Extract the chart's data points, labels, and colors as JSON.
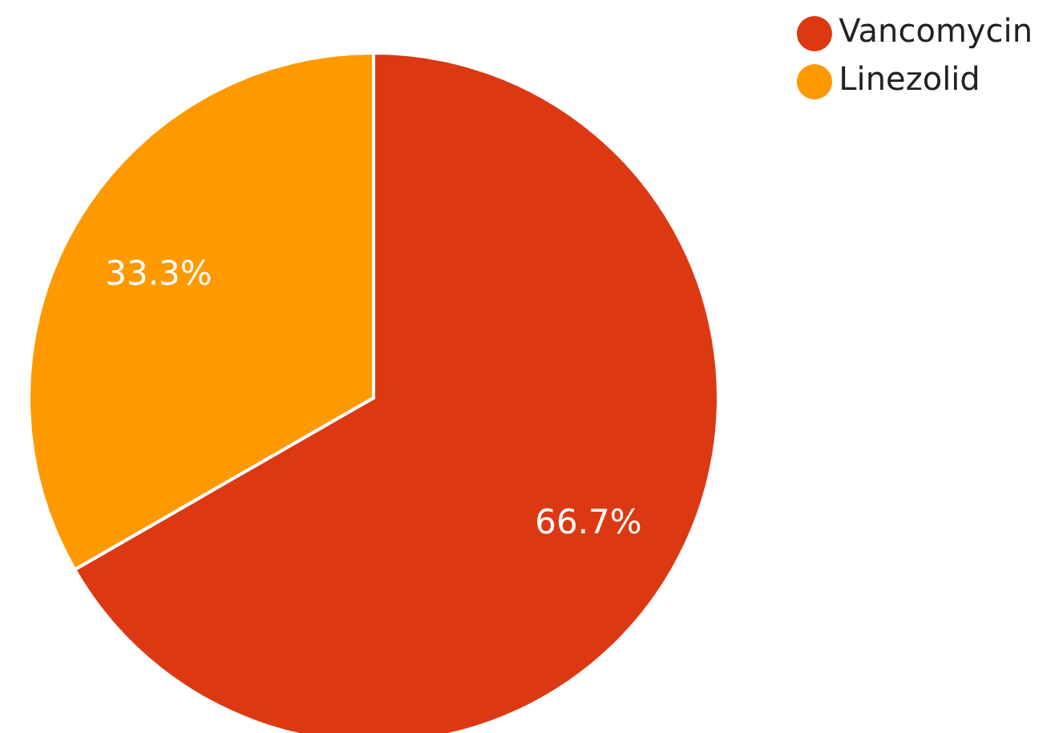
{
  "chart_data": {
    "type": "pie",
    "categories": [
      "Vancomycin",
      "Linezolid"
    ],
    "values": [
      66.7,
      33.3
    ],
    "colors": [
      "#dc3912",
      "#ff9900"
    ],
    "value_labels": [
      "66.7%",
      "33.3%"
    ],
    "legend": "top right"
  }
}
